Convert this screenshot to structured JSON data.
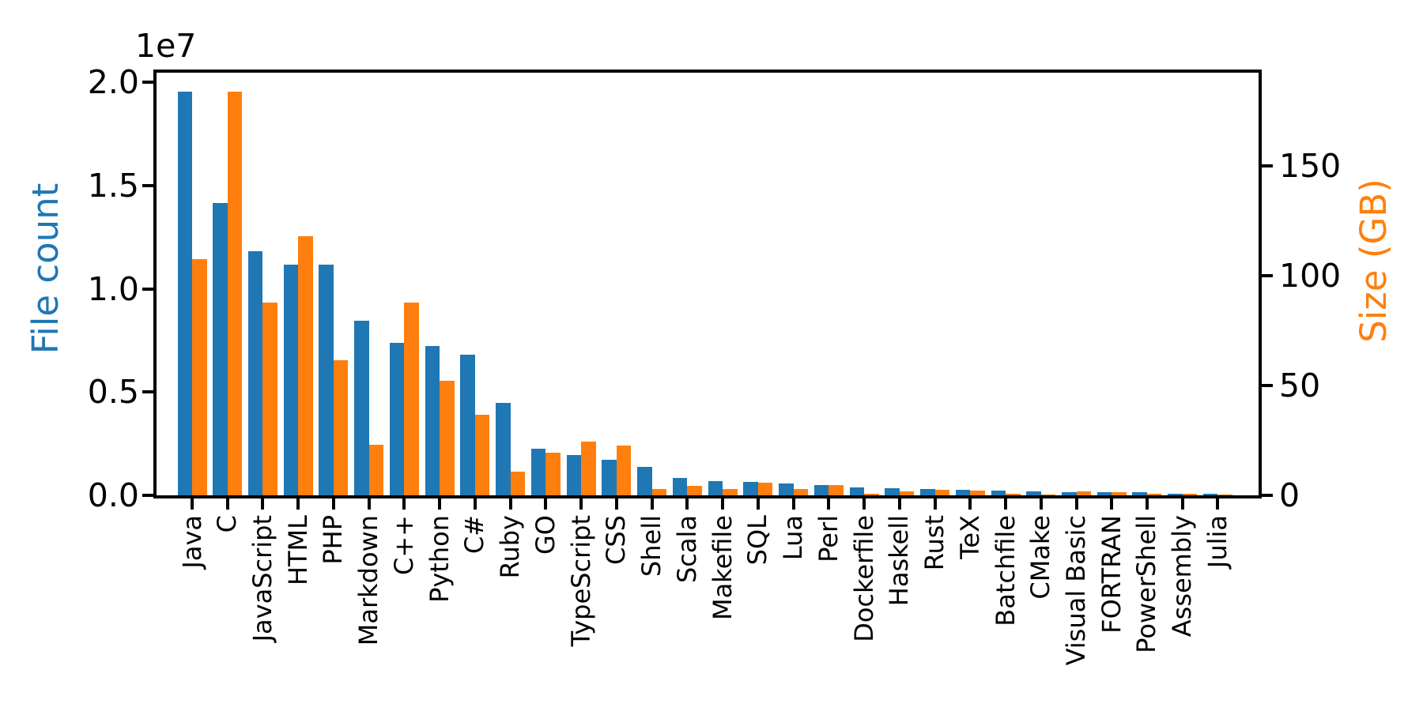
{
  "chart_data": {
    "type": "bar",
    "grid": false,
    "legend": "none",
    "background": "#ffffff",
    "spine_color": "#000000",
    "categories": [
      "Java",
      "C",
      "JavaScript",
      "HTML",
      "PHP",
      "Markdown",
      "C++",
      "Python",
      "C#",
      "Ruby",
      "GO",
      "TypeScript",
      "CSS",
      "Shell",
      "Scala",
      "Makefile",
      "SQL",
      "Lua",
      "Perl",
      "Dockerfile",
      "Haskell",
      "Rust",
      "TeX",
      "Batchfile",
      "CMake",
      "Visual Basic",
      "FORTRAN",
      "PowerShell",
      "Assembly",
      "Julia"
    ],
    "series": [
      {
        "name": "File count",
        "axis": "left",
        "color": "#1f77b4",
        "values": [
          19548190,
          14143113,
          11839883,
          11178557,
          11177610,
          8464626,
          7380520,
          7226626,
          6811652,
          4473331,
          2265436,
          1940406,
          1734406,
          1385648,
          835755,
          679430,
          656671,
          578554,
          497949,
          366505,
          340623,
          322431,
          251015,
          236945,
          175282,
          155652,
          142038,
          136846,
          82905,
          58317
        ]
      },
      {
        "name": "Size (GB)",
        "axis": "right",
        "color": "#ff7f0e",
        "values": [
          107.7,
          183.83,
          87.82,
          118.12,
          61.41,
          23.09,
          87.73,
          52.03,
          36.83,
          10.95,
          19.28,
          24.59,
          22.67,
          3.01,
          4.41,
          2.92,
          5.67,
          2.81,
          4.7,
          0.71,
          1.85,
          2.68,
          2.15,
          0.7,
          0.54,
          1.91,
          1.62,
          0.69,
          0.78,
          0.29
        ]
      }
    ],
    "left_axis": {
      "label": "File count",
      "color": "#1f77b4",
      "offset_text": "1e7",
      "tick_labels": [
        "0.0",
        "0.5",
        "1.0",
        "1.5",
        "2.0"
      ],
      "tick_values": [
        0,
        5000000,
        10000000,
        15000000,
        20000000
      ],
      "range": [
        0,
        20470000
      ]
    },
    "right_axis": {
      "label": "Size (GB)",
      "color": "#ff7f0e",
      "tick_labels": [
        "0",
        "50",
        "100",
        "150"
      ],
      "tick_values": [
        0,
        50,
        100,
        150
      ],
      "range": [
        0,
        192.6
      ]
    },
    "x_axis": {
      "tick_label_rotation": 90
    }
  }
}
